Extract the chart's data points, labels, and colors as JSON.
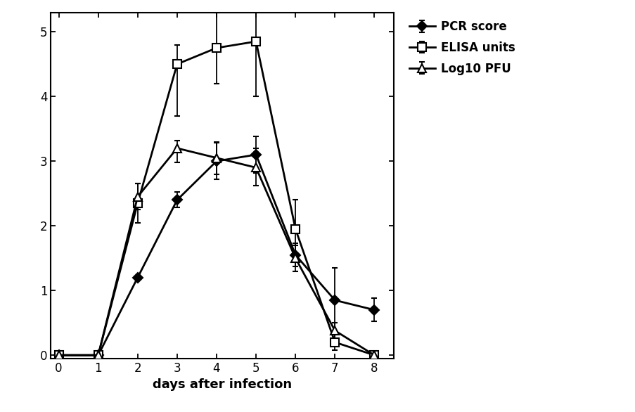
{
  "x": [
    0,
    1,
    2,
    3,
    4,
    5,
    6,
    7,
    8
  ],
  "pcr_score": {
    "y": [
      0,
      0,
      1.2,
      2.4,
      3.0,
      3.1,
      1.55,
      0.85,
      0.7
    ],
    "yerr_lo": [
      0,
      0,
      0,
      0.12,
      0.28,
      0.28,
      0.18,
      0.5,
      0.18
    ],
    "yerr_hi": [
      0,
      0,
      0,
      0.12,
      0.28,
      0.28,
      0.18,
      0.5,
      0.18
    ],
    "label": "PCR score",
    "marker": "D",
    "markersize": 7,
    "markerfacecolor": "black",
    "color": "black",
    "linewidth": 2.0
  },
  "elisa_units": {
    "y": [
      0,
      0,
      2.35,
      4.5,
      4.75,
      4.85,
      1.95,
      0.2,
      0.0
    ],
    "yerr_lo": [
      0,
      0,
      0.3,
      0.8,
      0.55,
      0.85,
      0.45,
      0.12,
      0
    ],
    "yerr_hi": [
      0,
      0,
      0.3,
      0.3,
      0.55,
      0.55,
      0.45,
      0.12,
      0
    ],
    "label": "ELISA units",
    "marker": "s",
    "markersize": 8,
    "markerfacecolor": "white",
    "color": "black",
    "linewidth": 2.0
  },
  "log10_pfu": {
    "y": [
      0,
      0,
      2.45,
      3.2,
      3.05,
      2.9,
      1.5,
      0.38,
      0.0
    ],
    "yerr_lo": [
      0,
      0,
      0.2,
      0.22,
      0.25,
      0.28,
      0.2,
      0.2,
      0
    ],
    "yerr_hi": [
      0,
      0,
      0.2,
      0.12,
      0.25,
      0.3,
      0.2,
      0.12,
      0
    ],
    "label": "Log10 PFU",
    "marker": "^",
    "markersize": 8,
    "markerfacecolor": "white",
    "color": "black",
    "linewidth": 2.0
  },
  "xlabel": "days after infection",
  "xlim": [
    -0.2,
    8.5
  ],
  "ylim": [
    -0.05,
    5.3
  ],
  "xticks": [
    0,
    1,
    2,
    3,
    4,
    5,
    6,
    7,
    8
  ],
  "yticks": [
    0,
    1,
    2,
    3,
    4,
    5
  ],
  "xlabel_fontsize": 13,
  "tick_fontsize": 12,
  "legend_fontsize": 12,
  "background_color": "white",
  "figsize": [
    9.04,
    5.86
  ],
  "dpi": 100
}
